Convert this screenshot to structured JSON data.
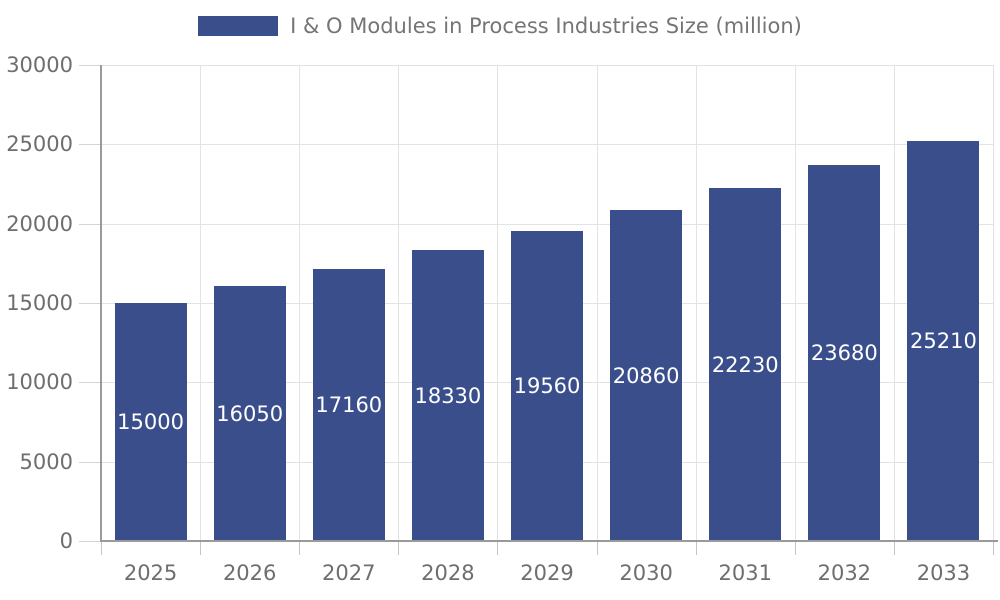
{
  "legend": {
    "label": "I & O Modules in Process Industries Size (million)"
  },
  "chart_data": {
    "type": "bar",
    "title": "I & O Modules in Process Industries Size (million)",
    "categories": [
      "2025",
      "2026",
      "2027",
      "2028",
      "2029",
      "2030",
      "2031",
      "2032",
      "2033"
    ],
    "values": [
      15000,
      16050,
      17160,
      18330,
      19560,
      20860,
      22230,
      23680,
      25210
    ],
    "xlabel": "",
    "ylabel": "",
    "ylim": [
      0,
      30000
    ],
    "yticks": [
      0,
      5000,
      10000,
      15000,
      20000,
      25000,
      30000
    ],
    "grid": true,
    "legend_position": "top",
    "bar_labels_inside": true
  },
  "colors": {
    "bar": "#3A4E8C",
    "bar_label": "#ffffff",
    "grid": "#e2e2e7",
    "axis_line": "#9a9a9a",
    "tick": "#c9c9cd",
    "axis_text": "#6e6e6e",
    "legend_text": "#757575",
    "background": "#ffffff"
  }
}
